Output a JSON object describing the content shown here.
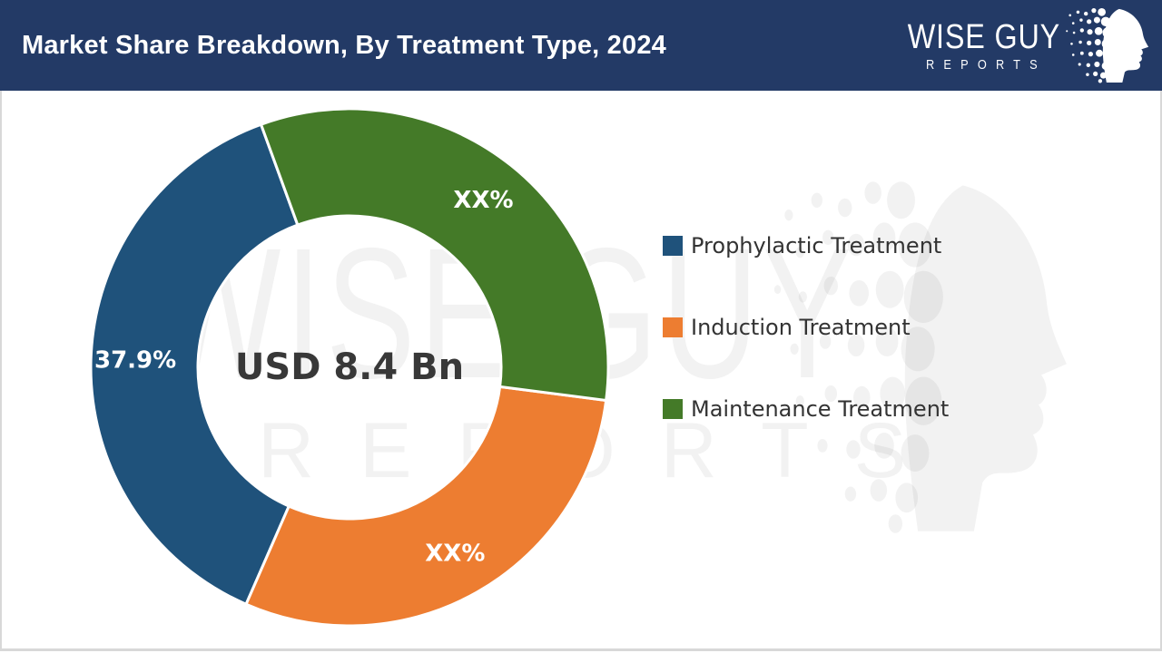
{
  "colors": {
    "header_bg": "#233A66",
    "panel_border": "#d8d8d8",
    "center_text": "#383838",
    "legend_text": "#333333"
  },
  "header": {
    "title": "Market Share Breakdown, By Treatment Type, 2024",
    "logo": {
      "name": "WISE GUY",
      "sub": "REPORTS"
    }
  },
  "watermark": {
    "name": "WISE GUY",
    "sub": "REPORTS"
  },
  "chart_data": {
    "type": "pie",
    "subtype": "donut",
    "title": "Market Share Breakdown, By Treatment Type, 2024",
    "center_label": "USD 8.4 Bn",
    "start_angle_deg": 110,
    "direction": "counterclockwise",
    "legend_position": "right",
    "slices": [
      {
        "name": "Prophylactic Treatment",
        "value_pct": 37.9,
        "label": "37.9%",
        "color": "#1F527B"
      },
      {
        "name": "Induction Treatment",
        "value_pct": 29.5,
        "label": "XX%",
        "color": "#ED7D31"
      },
      {
        "name": "Maintenance Treatment",
        "value_pct": 32.6,
        "label": "XX%",
        "color": "#447A28"
      }
    ]
  }
}
